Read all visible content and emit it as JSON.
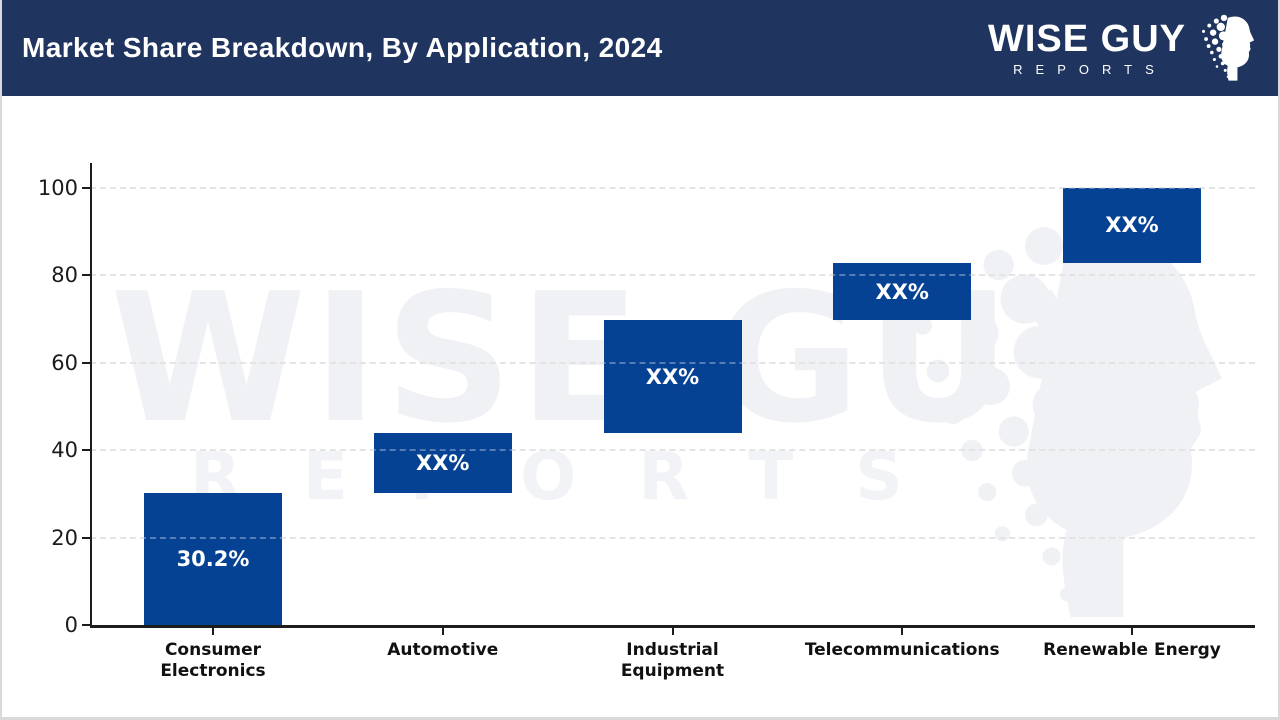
{
  "header": {
    "title": "Market Share Breakdown, By Application, 2024",
    "logo_wordmark": "WISE GUY",
    "logo_subtext": "REPORTS",
    "bg_color": "#1f345f"
  },
  "watermark": {
    "wordmark": "WISE GUY",
    "subtext": "REPORTS"
  },
  "chart_data": {
    "type": "bar",
    "subtype": "waterfall",
    "title": "Market Share Breakdown, By Application, 2024",
    "categories": [
      "Consumer Electronics",
      "Automotive",
      "Industrial Equipment",
      "Telecommunications",
      "Renewable Energy"
    ],
    "category_lines": [
      [
        "Consumer",
        "Electronics"
      ],
      [
        "Automotive"
      ],
      [
        "Industrial",
        "Equipment"
      ],
      [
        "Telecommunications"
      ],
      [
        "Renewable Energy"
      ]
    ],
    "series": [
      {
        "name": "Market Share",
        "segments": [
          {
            "category": "Consumer Electronics",
            "start": 0,
            "end": 30.2,
            "label": "30.2%"
          },
          {
            "category": "Automotive",
            "start": 30.2,
            "end": 43.9,
            "label": "XX%"
          },
          {
            "category": "Industrial Equipment",
            "start": 43.9,
            "end": 69.7,
            "label": "XX%"
          },
          {
            "category": "Telecommunications",
            "start": 69.7,
            "end": 82.7,
            "label": "XX%"
          },
          {
            "category": "Renewable Energy",
            "start": 82.7,
            "end": 100,
            "label": "XX%"
          }
        ]
      }
    ],
    "xlabel": "",
    "ylabel": "",
    "ylim": [
      0,
      100
    ],
    "yticks": [
      0,
      20,
      40,
      60,
      80,
      100
    ],
    "grid": "dashed-horizontal",
    "legend": "none",
    "bar_color": "#064294",
    "bar_label_color": "#ffffff",
    "axis_color": "#1c1c1c"
  }
}
